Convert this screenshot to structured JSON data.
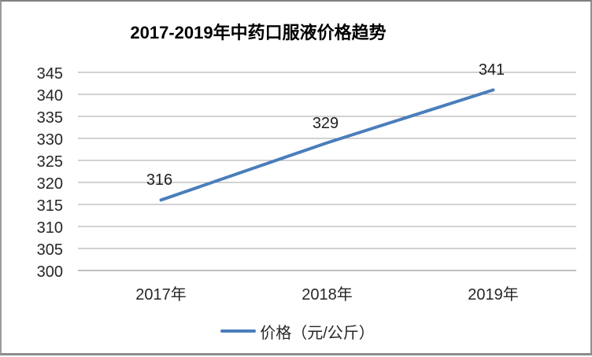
{
  "chart_data": {
    "type": "line",
    "title": "2017-2019年中药口服液价格趋势",
    "categories": [
      "2017年",
      "2018年",
      "2019年"
    ],
    "series": [
      {
        "name": "价格（元/公斤）",
        "values": [
          316,
          329,
          341
        ]
      }
    ],
    "data_labels": [
      "316",
      "329",
      "341"
    ],
    "xlabel": "",
    "ylabel": "",
    "ylim": [
      300,
      345
    ],
    "y_ticks": [
      345,
      340,
      335,
      330,
      325,
      320,
      315,
      310,
      305,
      300
    ],
    "grid": true,
    "legend_position": "bottom",
    "colors": {
      "line": "#4A7EBB",
      "grid": "#A6A6A6",
      "axis": "#808080",
      "text": "#262626",
      "title": "#000000",
      "frame": "#8C8C8C"
    }
  }
}
